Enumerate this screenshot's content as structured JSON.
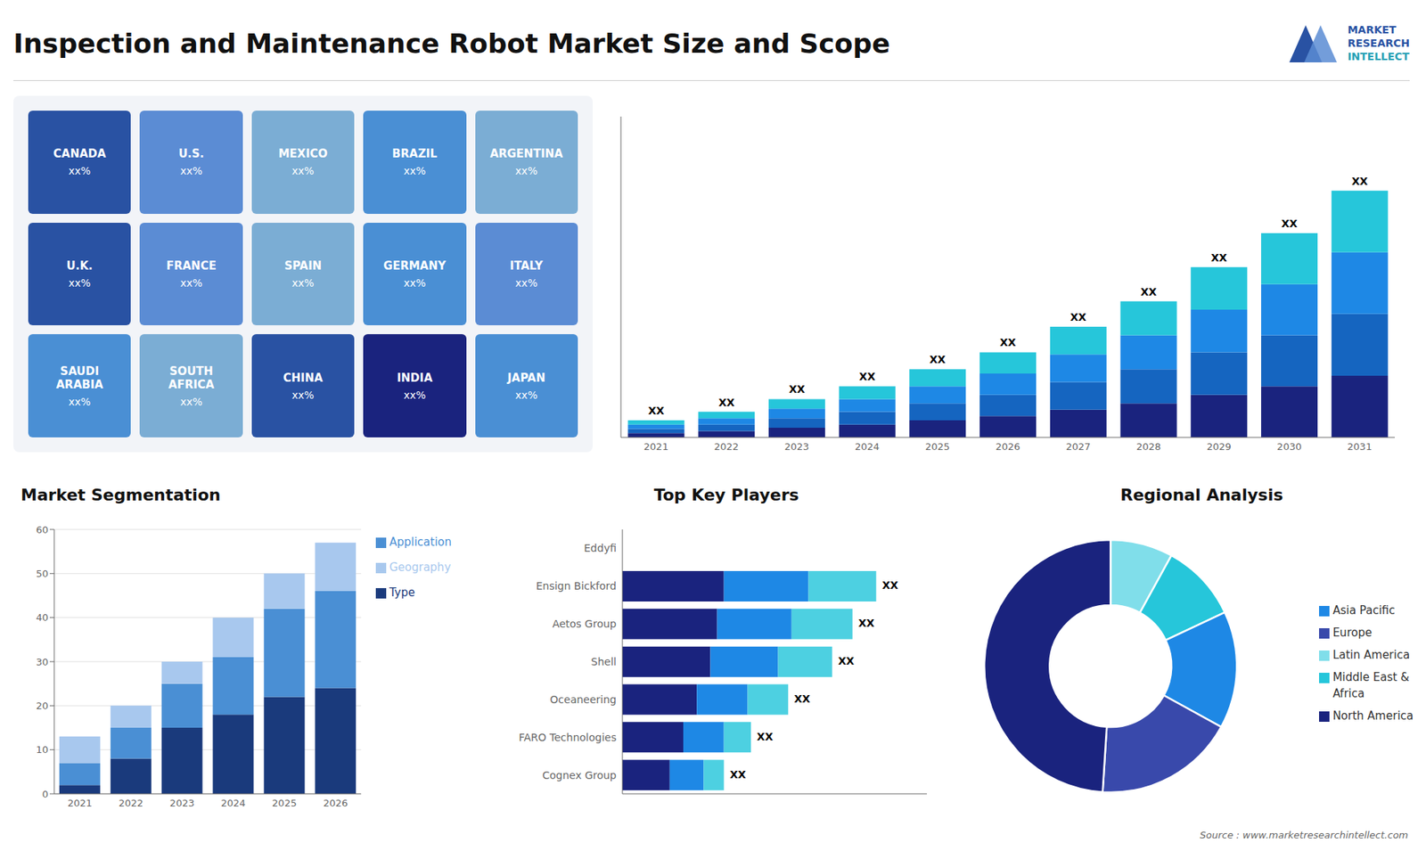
{
  "title": "Inspection and Maintenance Robot Market Size and Scope",
  "annotations": [
    "Source : www.marketresearchintellect.com",
    "MARKET",
    "RESEARCH",
    "INTELLECT"
  ],
  "chart_data": [
    {
      "type": "map",
      "categories": [
        "CANADA",
        "U.S.",
        "MEXICO",
        "BRAZIL",
        "ARGENTINA",
        "U.K.",
        "FRANCE",
        "SPAIN",
        "GERMANY",
        "ITALY",
        "SAUDI\nARABIA",
        "SOUTH\nAFRICA",
        "CHINA",
        "INDIA",
        "JAPAN"
      ],
      "value_labels": [
        "xx%",
        "xx%",
        "xx%",
        "xx%",
        "xx%",
        "xx%",
        "xx%",
        "xx%",
        "xx%",
        "xx%",
        "xx%",
        "xx%",
        "xx%",
        "xx%",
        "xx%"
      ],
      "colors": [
        "#2952a3",
        "#5b8cd4",
        "#7badd4",
        "#4a8fd4",
        "#7badd4",
        "#2952a3",
        "#5b8cd4",
        "#7badd4",
        "#4a8fd4",
        "#5b8cd4",
        "#4a8fd4",
        "#7badd4",
        "#2952a3",
        "#1a237e",
        "#4a8fd4"
      ]
    },
    {
      "type": "bar",
      "stacked": true,
      "categories": [
        "2021",
        "2022",
        "2023",
        "2024",
        "2025",
        "2026",
        "2027",
        "2028",
        "2029",
        "2030",
        "2031"
      ],
      "series": [
        {
          "color": "#1a237e",
          "values": [
            2,
            3,
            4.5,
            6,
            8,
            10,
            13,
            16,
            20,
            24,
            29
          ]
        },
        {
          "color": "#1565c0",
          "values": [
            2,
            3,
            4.5,
            6,
            8,
            10,
            13,
            16,
            20,
            24,
            29
          ]
        },
        {
          "color": "#1e88e5",
          "values": [
            2,
            3,
            4.5,
            6,
            8,
            10,
            13,
            16,
            20,
            24,
            29
          ]
        },
        {
          "color": "#26c6da",
          "values": [
            2,
            3,
            4.5,
            6,
            8,
            10,
            13,
            16,
            20,
            24,
            29
          ],
          "value_labels": [
            "XX",
            "XX",
            "XX",
            "XX",
            "XX",
            "XX",
            "XX",
            "XX",
            "XX",
            "XX",
            "XX"
          ]
        }
      ],
      "ylim": [
        0,
        150.8
      ],
      "tick_labels": "x"
    },
    {
      "type": "bar",
      "title": "Market Segmentation",
      "stacked": true,
      "categories": [
        "2021",
        "2022",
        "2023",
        "2024",
        "2025",
        "2026"
      ],
      "series": [
        {
          "name": "Type",
          "color": "#1a3a7c",
          "values": [
            2,
            8,
            15,
            18,
            22,
            24
          ]
        },
        {
          "name": "Application",
          "color": "#4a8fd4",
          "values": [
            5,
            7,
            10,
            13,
            20,
            22
          ]
        },
        {
          "name": "Geography",
          "color": "#a8c8ee",
          "values": [
            6,
            5,
            5,
            9,
            8,
            11
          ]
        }
      ],
      "ylim": [
        0,
        60
      ],
      "yticks": [
        0,
        10,
        20,
        30,
        40,
        50,
        60
      ],
      "grid": true,
      "legend": "right"
    },
    {
      "type": "bar",
      "title": "Top Key Players",
      "orientation": "horizontal",
      "stacked": true,
      "categories": [
        "Eddyfi",
        "Ensign Bickford",
        "Aetos Group",
        "Shell",
        "Oceaneering",
        "FARO Technologies",
        "Cognex Group"
      ],
      "series": [
        {
          "color": "#1a237e",
          "values": [
            0,
            30,
            28,
            26,
            22,
            18,
            14
          ]
        },
        {
          "color": "#1e88e5",
          "values": [
            0,
            25,
            22,
            20,
            15,
            12,
            10
          ]
        },
        {
          "color": "#4dd0e1",
          "values": [
            0,
            20,
            18,
            16,
            12,
            8,
            6
          ],
          "value_labels": [
            null,
            "XX",
            "XX",
            "XX",
            "XX",
            "XX",
            "XX"
          ]
        }
      ],
      "xlim": [
        0,
        90
      ],
      "tick_labels": "y"
    },
    {
      "type": "pie",
      "title": "Regional Analysis",
      "categories": [
        "Latin America",
        "Middle East &\nAfrica",
        "Asia Pacific",
        "Europe",
        "North America"
      ],
      "values": [
        8,
        10,
        15,
        18,
        49
      ],
      "colors": [
        "#80deea",
        "#26c6da",
        "#1e88e5",
        "#3949ab",
        "#1a237e"
      ],
      "legend": "right"
    }
  ]
}
